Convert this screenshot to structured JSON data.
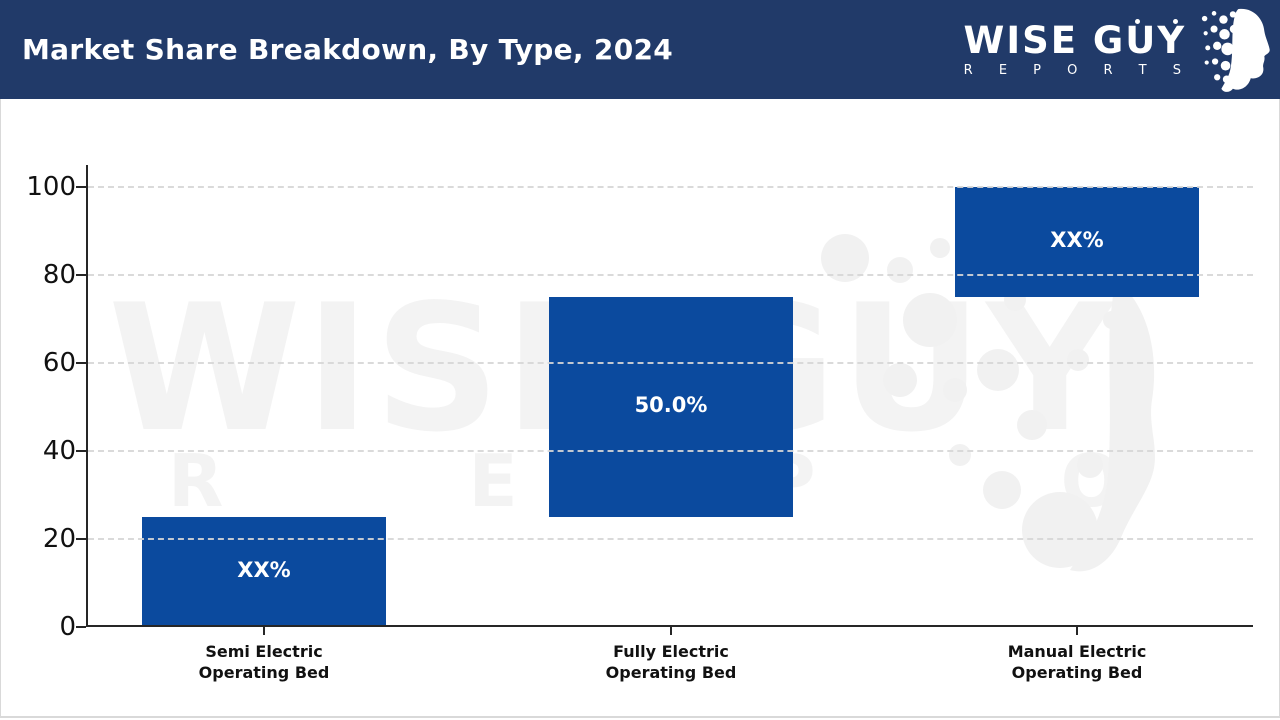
{
  "header": {
    "title": "Market Share Breakdown, By Type, 2024",
    "logo": {
      "wordmark": "WISE GUY",
      "sub": "R E P O R T S"
    }
  },
  "watermark": {
    "line1": "WISE GUY",
    "line2": "R E P O R T S"
  },
  "colors": {
    "header_bg": "#213A69",
    "bar_blue": "#0B4A9E",
    "axis": "#262626",
    "grid": "#d6d6d6",
    "bar_label": "#ffffff"
  },
  "chart_data": {
    "type": "bar",
    "variant": "floating-segment (waterfall-style market share)",
    "title": "Market Share Breakdown, By Type, 2024",
    "xlabel": "",
    "ylabel": "",
    "categories": [
      [
        "Semi Electric",
        "Operating Bed"
      ],
      [
        "Fully Electric",
        "Operating Bed"
      ],
      [
        "Manual Electric",
        "Operating Bed"
      ]
    ],
    "bars": [
      {
        "category": "Semi Electric Operating Bed",
        "start": 0,
        "end": 25,
        "label": "XX%"
      },
      {
        "category": "Fully Electric Operating Bed",
        "start": 25,
        "end": 75,
        "label": "50.0%"
      },
      {
        "category": "Manual Electric Operating Bed",
        "start": 75,
        "end": 100,
        "label": "XX%"
      }
    ],
    "yticks": [
      0,
      20,
      40,
      60,
      80,
      100
    ],
    "ylim": [
      0,
      105
    ],
    "grid": "horizontal dashed",
    "legend": "none",
    "bar_color": "#0B4A9E"
  }
}
